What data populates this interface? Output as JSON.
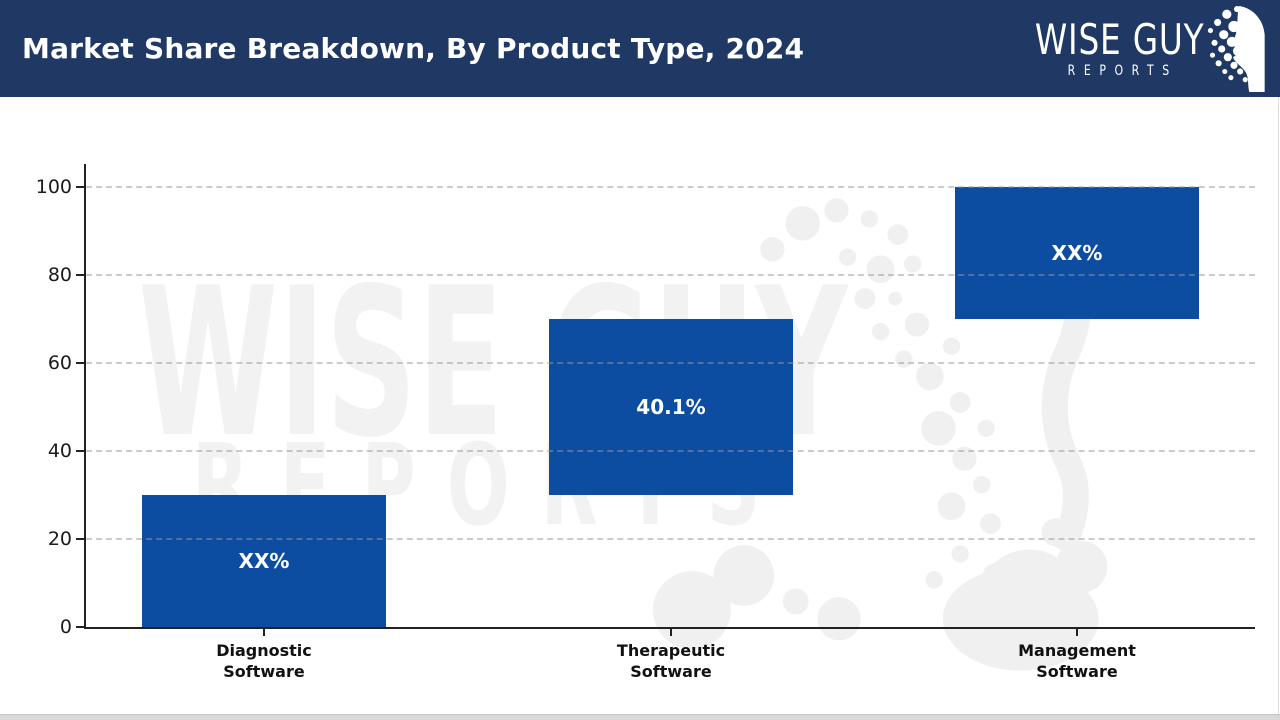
{
  "header": {
    "title": "Market Share Breakdown, By Product Type, 2024",
    "logo": {
      "line1": "WISE GUY",
      "line2": "REPORTS"
    }
  },
  "watermark": {
    "line1": "WISE GUY",
    "line2": "REPORTS"
  },
  "chart_data": {
    "type": "bar",
    "subtype": "waterfall",
    "title": "Market Share Breakdown, By Product Type, 2024",
    "categories": [
      "Diagnostic Software",
      "Therapeutic Software",
      "Management Software"
    ],
    "category_lines": [
      [
        "Diagnostic",
        "Software"
      ],
      [
        "Therapeutic",
        "Software"
      ],
      [
        "Management",
        "Software"
      ]
    ],
    "bars": [
      {
        "category": "Diagnostic Software",
        "start": 0,
        "end": 30,
        "label": "XX%"
      },
      {
        "category": "Therapeutic Software",
        "start": 30,
        "end": 70.1,
        "label": "40.1%"
      },
      {
        "category": "Management Software",
        "start": 70.1,
        "end": 100,
        "label": "XX%"
      }
    ],
    "ylim": [
      0,
      100
    ],
    "yticks": [
      0,
      20,
      40,
      60,
      80,
      100
    ],
    "xlabel": "",
    "ylabel": "",
    "grid": "horizontal-dashed",
    "legend": "none",
    "bar_color": "#0c4da2",
    "label_color": "#ffffff"
  },
  "colors": {
    "header_bg": "#203864",
    "bar": "#0c4da2",
    "axis": "#222222",
    "grid": "#c9cbd0",
    "watermark": "#f2f2f2",
    "footer_strip": "#d8d8d8"
  }
}
